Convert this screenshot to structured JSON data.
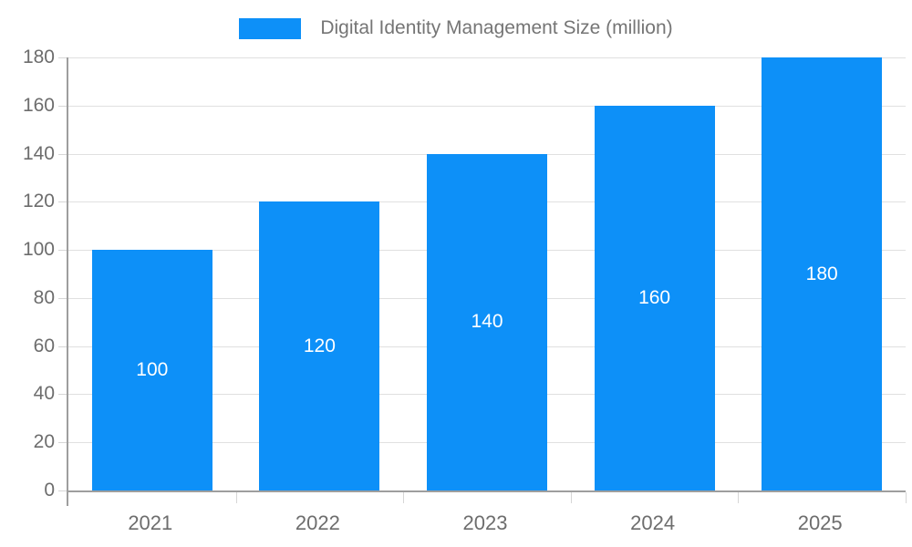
{
  "legend": {
    "label": "Digital Identity Management Size (million)"
  },
  "colors": {
    "bar": "#0D90F8",
    "bar_label": "#ffffff",
    "axis": "#9e9e9e",
    "grid": "#e0e0e0",
    "tick_text": "#6d6d6d",
    "legend_text": "#757575"
  },
  "chart_data": {
    "type": "bar",
    "categories": [
      "2021",
      "2022",
      "2023",
      "2024",
      "2025"
    ],
    "values": [
      100,
      120,
      140,
      160,
      180
    ],
    "series_name": "Digital Identity Management Size (million)",
    "title": "",
    "xlabel": "",
    "ylabel": "",
    "ylim": [
      0,
      180
    ],
    "ytick_step": 20,
    "grid": true,
    "legend_position": "top-center",
    "bar_label_position": "inside-center"
  }
}
